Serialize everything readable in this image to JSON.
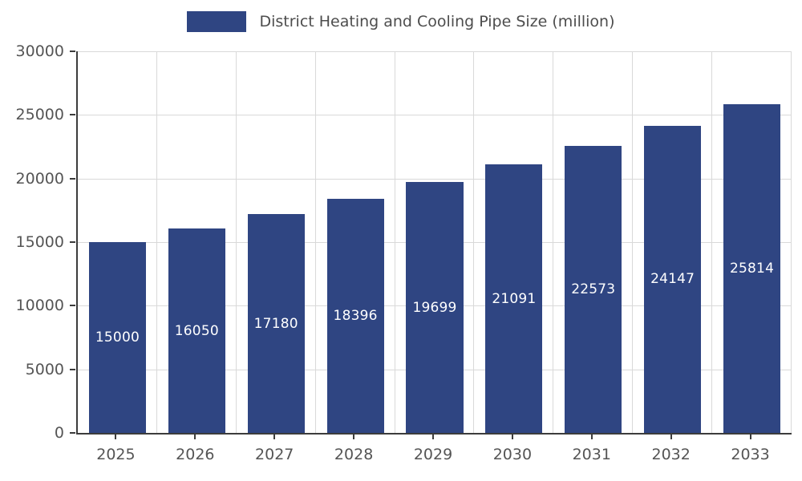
{
  "chart_data": {
    "type": "bar",
    "title": "District Heating and Cooling Pipe Size (million)",
    "categories": [
      "2025",
      "2026",
      "2027",
      "2028",
      "2029",
      "2030",
      "2031",
      "2032",
      "2033"
    ],
    "values": [
      15000,
      16050,
      17180,
      18396,
      19699,
      21091,
      22573,
      24147,
      25814
    ],
    "value_labels": [
      "15000",
      "16050",
      "17180",
      "18396",
      "19699",
      "21091",
      "22573",
      "24147",
      "25814"
    ],
    "xlabel": "",
    "ylabel": "",
    "ylim": [
      0,
      30000
    ],
    "yticks": [
      0,
      5000,
      10000,
      15000,
      20000,
      25000,
      30000
    ],
    "ytick_labels": [
      "0",
      "5000",
      "10000",
      "15000",
      "20000",
      "25000",
      "30000"
    ],
    "grid": "on",
    "legend_position": "top-center",
    "bar_color": "#2f4582",
    "label_color": "#ffffff",
    "axis_color": "#3c3c3c",
    "grid_color": "#d9d9d9",
    "tick_text_color": "#555555"
  }
}
